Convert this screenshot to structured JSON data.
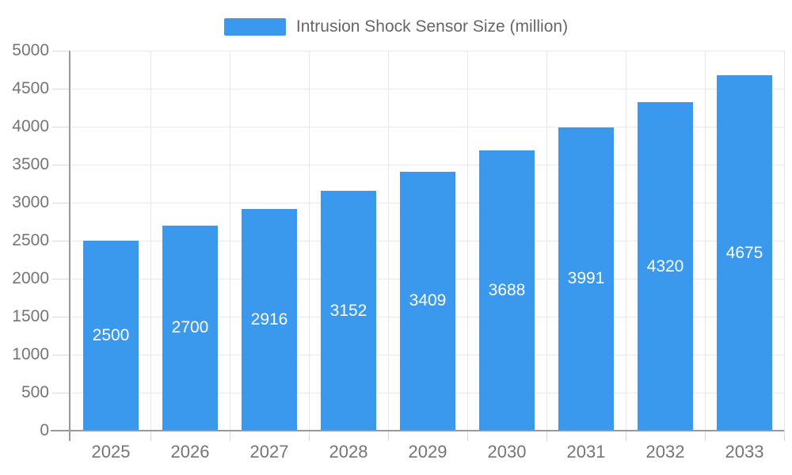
{
  "chart_data": {
    "type": "bar",
    "title": "Intrusion Shock Sensor Size (million)",
    "categories": [
      "2025",
      "2026",
      "2027",
      "2028",
      "2029",
      "2030",
      "2031",
      "2032",
      "2033"
    ],
    "series": [
      {
        "name": "Intrusion Shock Sensor Size (million)",
        "values": [
          2500,
          2700,
          2916,
          3152,
          3409,
          3688,
          3991,
          4320,
          4675
        ]
      }
    ],
    "xlabel": "",
    "ylabel": "",
    "ylim": [
      0,
      5000
    ],
    "ytick_step": 500,
    "ytick_labels": [
      "0",
      "500",
      "1000",
      "1500",
      "2000",
      "2500",
      "3000",
      "3500",
      "4000",
      "4500",
      "5000"
    ],
    "grid": true,
    "legend_position": "top-center",
    "value_labels": "inside-center",
    "colors": {
      "bar": "#3B99ED",
      "bar_value_text": "#FFFFFF",
      "axis_line": "#999999",
      "gridline": "#E8E8E8",
      "tick_mark": "#D8D8D8",
      "tick_label_text": "#757575",
      "legend_text": "#666666",
      "background": "#FFFFFF"
    }
  }
}
